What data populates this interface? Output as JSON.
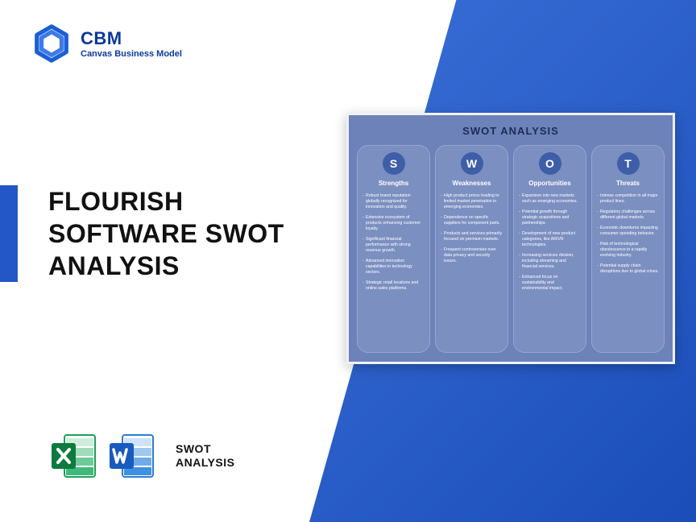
{
  "colors": {
    "brand_blue": "#0b3a9a",
    "accent_blue": "#2356c7",
    "diag_start": "#3b6fd8",
    "diag_end": "#1a4db8",
    "card_bg": "#6d82b9",
    "col_bg": "#7b8fc1",
    "col_border": "#95a6cf",
    "circle": "#3e5ea8",
    "excel_green": "#1e9e5a",
    "excel_green_dark": "#0f7a3f",
    "word_blue": "#2b7cd3",
    "word_blue_dark": "#185abd",
    "text_dark": "#111111"
  },
  "logo": {
    "title": "CBM",
    "subtitle": "Canvas Business Model"
  },
  "title": "FLOURISH SOFTWARE SWOT ANALYSIS",
  "bottom_label_line1": "SWOT",
  "bottom_label_line2": "ANALYSIS",
  "swot": {
    "card_title": "SWOT ANALYSIS",
    "columns": [
      {
        "letter": "S",
        "heading": "Strengths",
        "items": [
          "Robust brand reputation globally recognized for innovation and quality.",
          "Extensive ecosystem of products enhancing customer loyalty.",
          "Significant financial performance with strong revenue growth.",
          "Advanced innovation capabilities in technology sectors.",
          "Strategic retail locations and online sales platforms."
        ]
      },
      {
        "letter": "W",
        "heading": "Weaknesses",
        "items": [
          "High product prices leading to limited market penetration in emerging economies.",
          "Dependence on specific suppliers for component parts.",
          "Products and services primarily focused on premium markets.",
          "Frequent controversies over data privacy and security issues."
        ]
      },
      {
        "letter": "O",
        "heading": "Opportunities",
        "items": [
          "Expansion into new markets such as emerging economies.",
          "Potential growth through strategic acquisitions and partnerships.",
          "Development of new product categories, like AR/VR technologies.",
          "Increasing services division, including streaming and financial services.",
          "Enhanced focus on sustainability and environmental impact."
        ]
      },
      {
        "letter": "T",
        "heading": "Threats",
        "items": [
          "Intense competition in all major product lines.",
          "Regulatory challenges across different global markets.",
          "Economic downturns impacting consumer spending behavior.",
          "Risk of technological obsolescence in a rapidly evolving industry.",
          "Potential supply chain disruptions due to global crises."
        ]
      }
    ]
  }
}
